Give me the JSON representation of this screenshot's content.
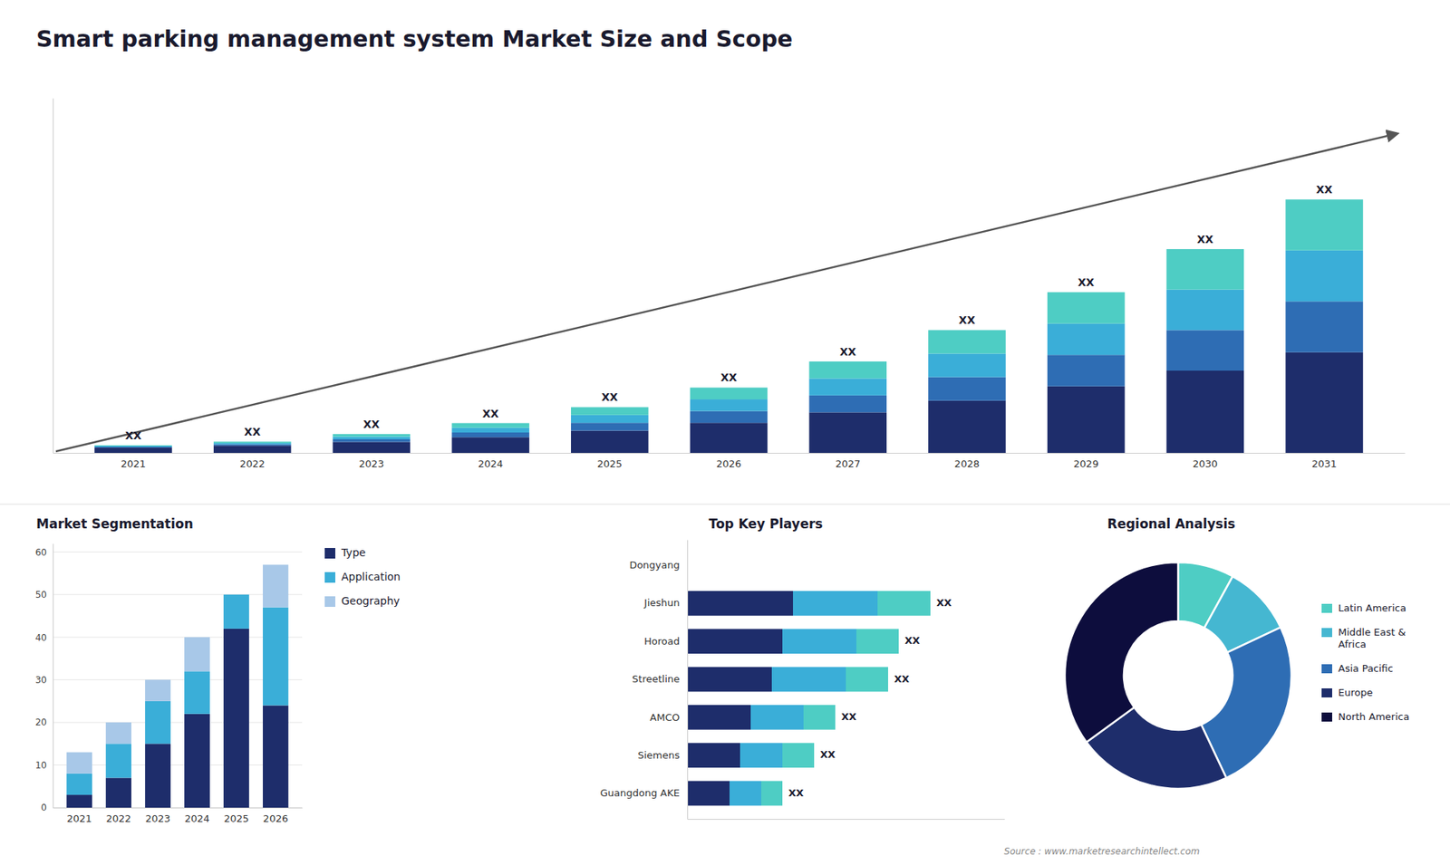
{
  "chart_data": [
    {
      "type": "bar",
      "title": "Smart parking management system Market Size and Scope",
      "stacked": true,
      "categories": [
        "2021",
        "2022",
        "2023",
        "2024",
        "2025",
        "2026",
        "2027",
        "2028",
        "2029",
        "2030",
        "2031"
      ],
      "series": [
        {
          "color": "#1e2d6b",
          "values": [
            2.0,
            2.8,
            4.2,
            6.0,
            8.5,
            11.5,
            15.5,
            20.0,
            25.5,
            31.5,
            38.5
          ]
        },
        {
          "color": "#2e6db4",
          "values": [
            0.3,
            0.5,
            1.0,
            1.8,
            3.0,
            4.5,
            6.5,
            9.0,
            12.0,
            15.5,
            19.5
          ]
        },
        {
          "color": "#3aaed8",
          "values": [
            0.3,
            0.5,
            1.0,
            1.8,
            3.0,
            4.5,
            6.5,
            9.0,
            12.0,
            15.5,
            19.5
          ]
        },
        {
          "color": "#4ecdc4",
          "values": [
            0.3,
            0.5,
            1.0,
            1.8,
            3.0,
            4.5,
            6.5,
            9.0,
            12.0,
            15.5,
            19.5
          ]
        }
      ],
      "ylim": [
        0,
        135.8
      ],
      "tick_labels": "x",
      "annotations": [
        "XX",
        "XX",
        "XX",
        "XX",
        "XX",
        "XX",
        "XX",
        "XX",
        "XX",
        "XX",
        "XX"
      ]
    },
    {
      "type": "bar",
      "title": "Market Segmentation",
      "stacked": true,
      "categories": [
        "2021",
        "2022",
        "2023",
        "2024",
        "2025",
        "2026"
      ],
      "series": [
        {
          "name": "Type",
          "color": "#1e2d6b",
          "values": [
            3,
            7,
            15,
            22,
            42,
            24
          ]
        },
        {
          "name": "Application",
          "color": "#3aaed8",
          "values": [
            5,
            8,
            10,
            10,
            8,
            23
          ]
        },
        {
          "name": "Geography",
          "color": "#a8c8e8",
          "values": [
            5,
            5,
            5,
            8,
            0,
            10
          ]
        }
      ],
      "ylim": [
        0,
        62
      ],
      "yticks": [
        0,
        10,
        20,
        30,
        40,
        50,
        60
      ],
      "grid": true,
      "legend": "right"
    },
    {
      "type": "bar",
      "title": "Top Key Players",
      "orientation": "horizontal",
      "stacked": true,
      "categories": [
        "Dongyang",
        "Jieshun",
        "Horoad",
        "Streetline",
        "AMCO",
        "Siemens",
        "Guangdong AKE"
      ],
      "series": [
        {
          "color": "#1e2d6b",
          "values": [
            0,
            10,
            9,
            8,
            6,
            5,
            4
          ]
        },
        {
          "color": "#3aaed8",
          "values": [
            0,
            8,
            7,
            7,
            5,
            4,
            3
          ]
        },
        {
          "color": "#4ecdc4",
          "values": [
            0,
            5,
            4,
            4,
            3,
            3,
            2
          ]
        }
      ],
      "xlim": [
        0,
        30
      ],
      "tick_labels": "y",
      "annotations": [
        null,
        "XX",
        "XX",
        "XX",
        "XX",
        "XX",
        "XX"
      ]
    },
    {
      "type": "pie",
      "title": "Regional Analysis",
      "categories": [
        "Latin America",
        "Middle East &\nAfrica",
        "Asia Pacific",
        "Europe",
        "North America"
      ],
      "values": [
        8,
        10,
        25,
        22,
        35
      ],
      "colors": [
        "#4ecdc4",
        "#45b7d1",
        "#2e6db4",
        "#1e2d6b",
        "#0d0d3d"
      ],
      "legend": "right",
      "annotations": [
        "Source : www.marketresearchintellect.com"
      ]
    }
  ]
}
